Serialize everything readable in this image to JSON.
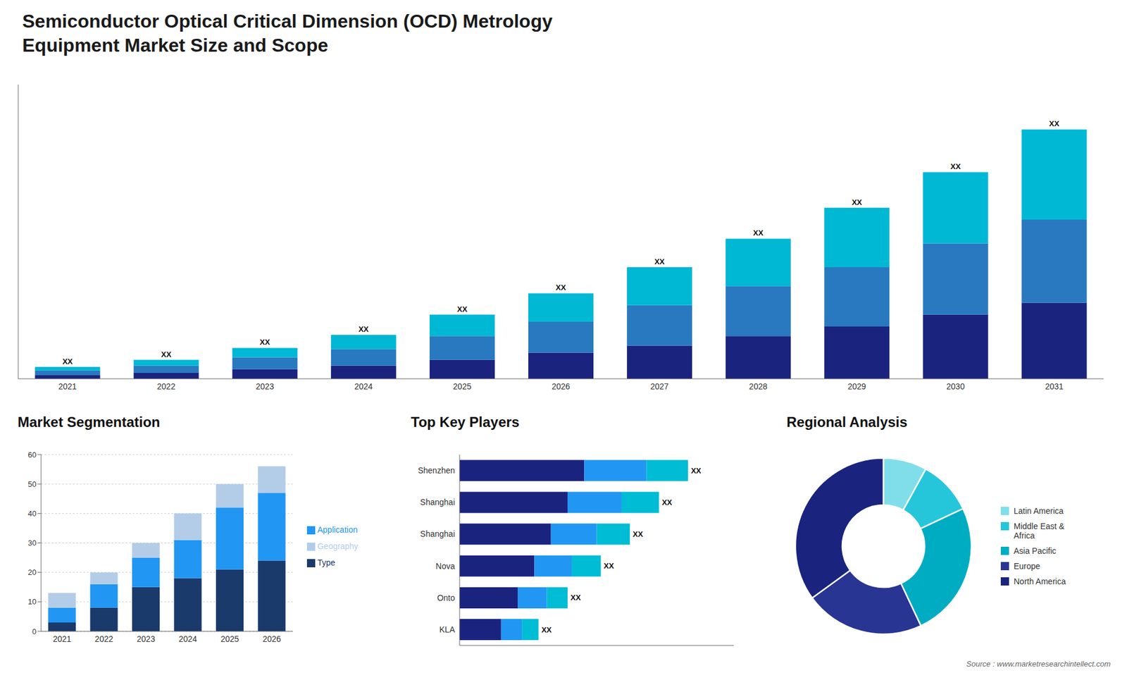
{
  "chart_data": [
    {
      "type": "bar",
      "title": "Semiconductor Optical Critical Dimension (OCD) Metrology",
      "subtitle": "Equipment Market Size and Scope",
      "annotations": [
        "Source : www.marketresearchintellect.com"
      ],
      "categories": [
        "2021",
        "2022",
        "2023",
        "2024",
        "2025",
        "2026",
        "2027",
        "2028",
        "2029",
        "2030",
        "2031"
      ],
      "series": [
        {
          "color": "#1a237e",
          "values": [
            1.5,
            2.5,
            4,
            5.5,
            8,
            11,
            14,
            18,
            22,
            27,
            32
          ]
        },
        {
          "color": "#2979c0",
          "values": [
            2,
            3,
            5,
            7,
            10,
            13,
            17,
            21,
            25,
            30,
            35
          ]
        },
        {
          "color": "#00b8d4",
          "values": [
            1.5,
            2.5,
            4,
            6,
            9,
            12,
            16,
            20,
            25,
            30,
            38
          ],
          "value_labels": [
            "XX",
            "XX",
            "XX",
            "XX",
            "XX",
            "XX",
            "XX",
            "XX",
            "XX",
            "XX",
            "XX"
          ]
        }
      ],
      "stacked": true,
      "ylim": [
        0,
        123.9
      ],
      "tick_labels": "x",
      "grid": false
    },
    {
      "type": "bar",
      "title": "Market Segmentation",
      "categories": [
        "2021",
        "2022",
        "2023",
        "2024",
        "2025",
        "2026"
      ],
      "series": [
        {
          "name": "Type",
          "color": "#1a3a6b",
          "values": [
            3,
            8,
            15,
            18,
            21,
            24
          ]
        },
        {
          "name": "Application",
          "color": "#2196f3",
          "values": [
            5,
            8,
            10,
            13,
            21,
            23
          ]
        },
        {
          "name": "Geography",
          "color": "#b3cde8",
          "values": [
            5,
            4,
            5,
            9,
            8,
            9
          ]
        }
      ],
      "stacked": true,
      "ylim": [
        0,
        60
      ],
      "yticks": [
        0,
        10,
        20,
        30,
        40,
        50,
        60
      ],
      "grid": true,
      "legend": "right"
    },
    {
      "type": "bar",
      "title": "Top Key Players",
      "orientation": "horizontal",
      "categories": [
        "Shenzhen",
        "Shanghai",
        "Shanghai",
        "Nova",
        "Onto",
        "KLA"
      ],
      "series": [
        {
          "color": "#1a237e",
          "values": [
            30,
            26,
            22,
            18,
            14,
            10
          ]
        },
        {
          "color": "#2196f3",
          "values": [
            15,
            13,
            11,
            9,
            7,
            5
          ]
        },
        {
          "color": "#00bcd4",
          "values": [
            10,
            9,
            8,
            7,
            5,
            4
          ],
          "value_labels": [
            "XX",
            "XX",
            "XX",
            "XX",
            "XX",
            "XX"
          ]
        }
      ],
      "stacked": true,
      "xlim": [
        0,
        66
      ],
      "tick_labels": "y",
      "grid": false
    },
    {
      "type": "donut",
      "title": "Regional Analysis",
      "categories": [
        "Latin America",
        "Middle East &\nAfrica",
        "Asia Pacific",
        "Europe",
        "North America"
      ],
      "values": [
        8,
        10,
        25,
        22,
        35
      ],
      "colors": [
        "#80deea",
        "#26c6da",
        "#00acc1",
        "#283593",
        "#1a237e"
      ],
      "legend": "right"
    }
  ]
}
